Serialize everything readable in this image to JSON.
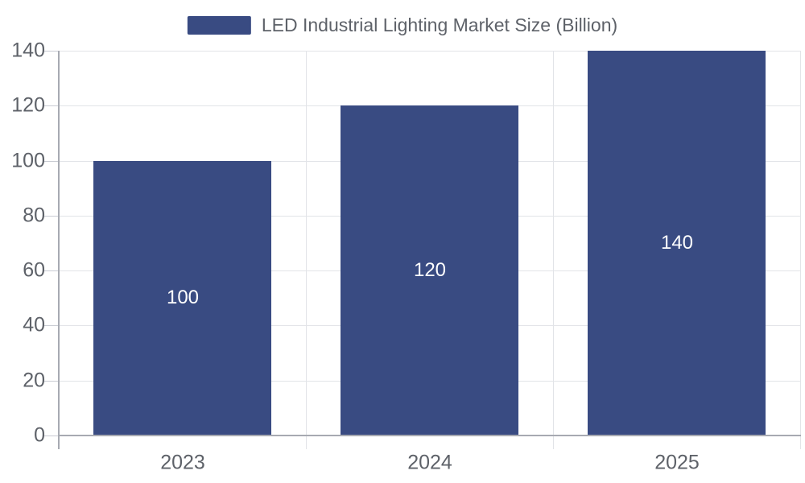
{
  "legend": {
    "label": "LED Industrial Lighting Market Size (Billion)"
  },
  "colors": {
    "bar": "#394B82",
    "grid": "#E2E4E8",
    "axis": "#A7AAB2",
    "tick": "#C8CBD3",
    "axis_label": "#5E6269",
    "legend_text": "#5E6269",
    "bar_label": "#FFFFFF",
    "background": "#FFFFFF"
  },
  "chart_data": {
    "type": "bar",
    "title": "LED Industrial Lighting Market Size (Billion)",
    "categories": [
      "2023",
      "2024",
      "2025"
    ],
    "values": [
      100,
      120,
      140
    ],
    "bar_labels": [
      "100",
      "120",
      "140"
    ],
    "xlabel": "",
    "ylabel": "",
    "ylim": [
      0,
      140
    ],
    "ytick_interval": 20,
    "ytick_labels": [
      "0",
      "20",
      "40",
      "60",
      "80",
      "100",
      "120",
      "140"
    ],
    "grid": true,
    "legend_position": "top-center",
    "bar_label_position": "inside-center"
  }
}
